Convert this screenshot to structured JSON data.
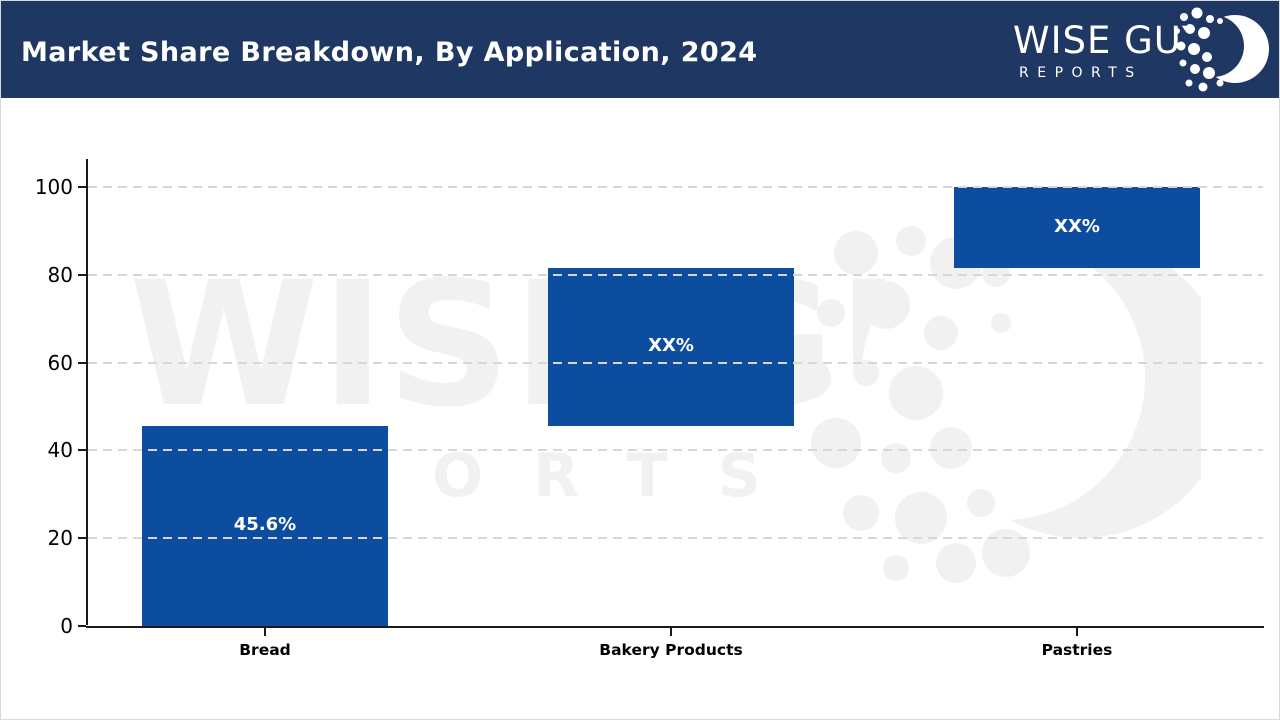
{
  "header": {
    "title": "Market Share Breakdown, By Application, 2024",
    "logo": {
      "line1": "WISE GUY",
      "line2": "R E P O R T S"
    }
  },
  "watermark": {
    "line1": "WISE GUY",
    "line2": "REPORTS"
  },
  "colors": {
    "header_bg": "#1f3763",
    "bar": "#0d4da0",
    "bar_label": "#ffffff",
    "gridline": "#d7d7d7",
    "axis": "#1a1a1a",
    "watermark": "#f1f1f2",
    "page_border": "#d9d9d9"
  },
  "chart_data": {
    "type": "bar",
    "subtype": "waterfall",
    "title": "Market Share Breakdown, By Application, 2024",
    "categories": [
      "Bread",
      "Bakery Products",
      "Pastries"
    ],
    "segments": [
      {
        "category": "Bread",
        "start": 0,
        "end": 45.6,
        "label": "45.6%"
      },
      {
        "category": "Bakery Products",
        "start": 45.6,
        "end": 81.5,
        "label": "XX%"
      },
      {
        "category": "Pastries",
        "start": 81.5,
        "end": 100,
        "label": "XX%"
      }
    ],
    "xlabel": "",
    "ylabel": "",
    "ylim": [
      0,
      100
    ],
    "yticks": [
      0,
      20,
      40,
      60,
      80,
      100
    ],
    "grid": "dashed-horizontal",
    "legend": "none",
    "value_unit": "%"
  }
}
